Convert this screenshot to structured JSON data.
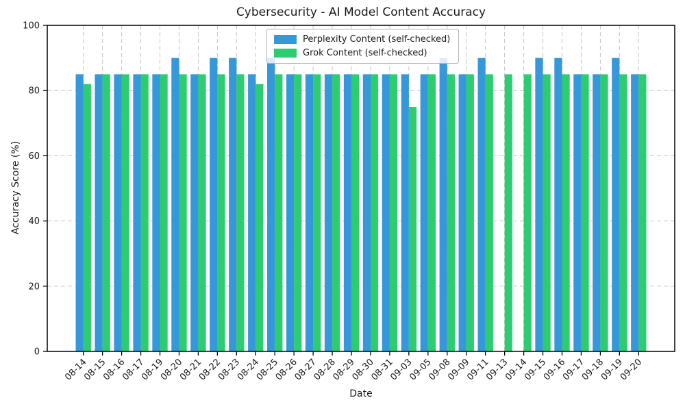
{
  "chart_data": {
    "type": "bar",
    "title": "Cybersecurity - AI Model Content Accuracy",
    "xlabel": "Date",
    "ylabel": "Accuracy Score (%)",
    "ylim": [
      0,
      100
    ],
    "yticks": [
      0,
      20,
      40,
      60,
      80,
      100
    ],
    "grid": true,
    "grid_style": "dashed",
    "legend_position": "upper center",
    "categories": [
      "08-14",
      "08-15",
      "08-16",
      "08-17",
      "08-19",
      "08-20",
      "08-21",
      "08-22",
      "08-23",
      "08-24",
      "08-25",
      "08-26",
      "08-27",
      "08-28",
      "08-29",
      "08-30",
      "08-31",
      "09-03",
      "09-05",
      "09-08",
      "09-09",
      "09-11",
      "09-13",
      "09-14",
      "09-15",
      "09-16",
      "09-17",
      "09-18",
      "09-19",
      "09-20"
    ],
    "series": [
      {
        "name": "Perplexity Content (self-checked)",
        "color": "#3498db",
        "values": [
          85,
          85,
          85,
          85,
          85,
          90,
          85,
          90,
          90,
          85,
          90,
          85,
          85,
          85,
          85,
          85,
          85,
          85,
          85,
          90,
          85,
          90,
          null,
          null,
          90,
          90,
          85,
          85,
          90,
          85
        ]
      },
      {
        "name": "Grok Content (self-checked)",
        "color": "#2ecc71",
        "values": [
          82,
          85,
          85,
          85,
          85,
          85,
          85,
          85,
          85,
          82,
          85,
          85,
          85,
          85,
          85,
          85,
          85,
          75,
          85,
          85,
          85,
          85,
          85,
          85,
          85,
          85,
          85,
          85,
          85,
          85
        ]
      }
    ]
  },
  "colors": {
    "spine": "#000000",
    "grid": "#c4c4c4",
    "tick_text": "#1a1a1a"
  }
}
